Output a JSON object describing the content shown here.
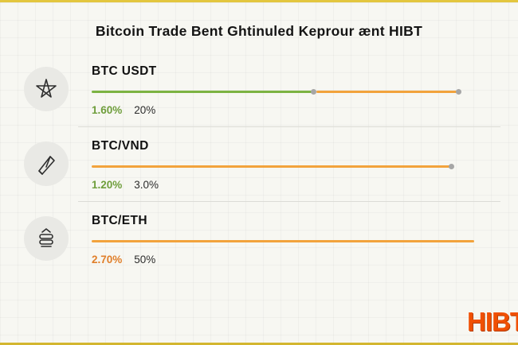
{
  "page": {
    "title": "Bitcoin Trade Bent Ghtinuled Keprour ænt HIBT",
    "logo_text": "HIBT"
  },
  "colors": {
    "bar_green": "#7cb342",
    "bar_orange": "#f2a33c",
    "dot_gray": "#a6a6a6",
    "rate_green": "#6f9e3c",
    "rate_orange": "#e07f2a",
    "logo_orange": "#f05004",
    "edge_yellow": "#e3c63f"
  },
  "rows": [
    {
      "pair": "BTC USDT",
      "rate": "1.60%",
      "rate_color": "#6f9e3c",
      "secondary": "20%",
      "icon": "scribble-star-icon",
      "bar": {
        "green_width": 58,
        "orange_width": 37
      }
    },
    {
      "pair": "BTC/VND",
      "rate": "1.20%",
      "rate_color": "#6f9e3c",
      "secondary": "3.0%",
      "icon": "pen-icon",
      "bar": {
        "green_width": 0,
        "orange_width": 94
      }
    },
    {
      "pair": "BTC/ETH",
      "rate": "2.70%",
      "rate_color": "#e07f2a",
      "secondary": "50%",
      "icon": "coin-stack-icon",
      "bar": {
        "green_width": 0,
        "orange_width": 100
      }
    }
  ],
  "chart_data": {
    "type": "bar",
    "title": "Bitcoin Trade Bent Ghtinuled Keprour ænt HIBT",
    "categories": [
      "BTC USDT",
      "BTC/VND",
      "BTC/ETH"
    ],
    "series": [
      {
        "name": "rate_percent",
        "values": [
          1.6,
          1.2,
          2.7
        ]
      },
      {
        "name": "secondary_percent",
        "values": [
          20,
          3.0,
          50
        ]
      }
    ],
    "bar_segments_percent_of_track": [
      {
        "green": 58,
        "orange": 37
      },
      {
        "green": 0,
        "orange": 94
      },
      {
        "green": 0,
        "orange": 100
      }
    ],
    "xlabel": "",
    "ylabel": "",
    "legend_position": "none"
  }
}
